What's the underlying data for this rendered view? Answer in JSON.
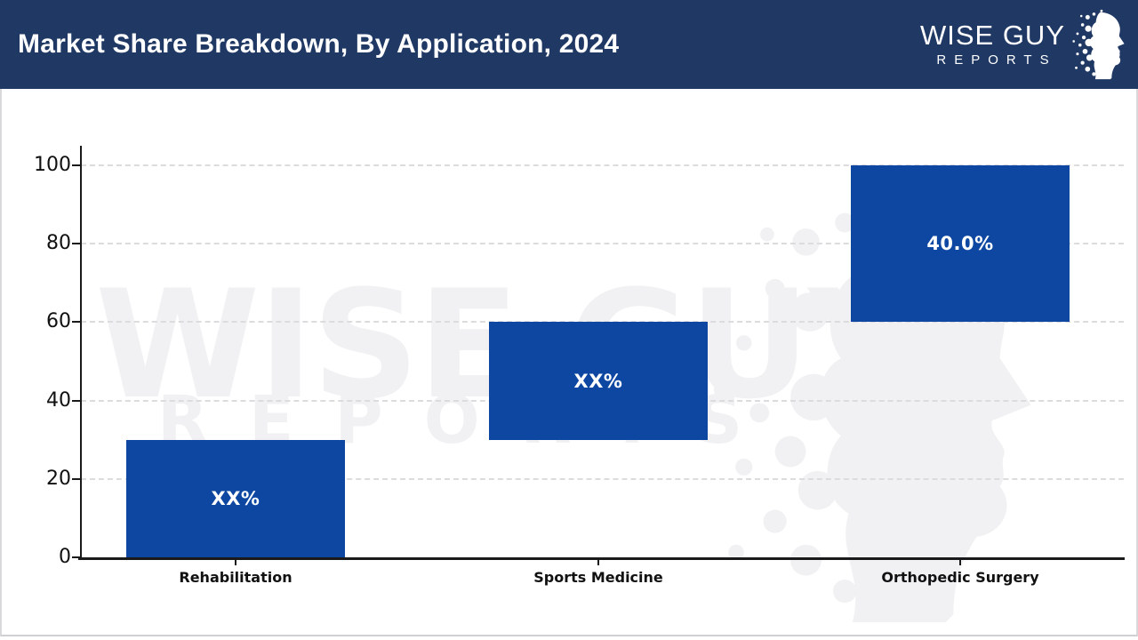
{
  "header": {
    "title": "Market Share Breakdown, By Application, 2024",
    "logo": {
      "line1": "WISE GUY",
      "line2": "REPORTS"
    }
  },
  "watermark": {
    "line1": "WISE GUY",
    "line2": "REPORTS"
  },
  "chart_data": {
    "type": "bar",
    "subtype": "waterfall",
    "title": "Market Share Breakdown, By Application, 2024",
    "categories": [
      "Rehabilitation",
      "Sports Medicine",
      "Orthopedic Surgery"
    ],
    "series": [
      {
        "name": "Market Share (%)",
        "values": [
          30,
          30,
          40
        ],
        "bases": [
          0,
          30,
          60
        ]
      }
    ],
    "bar_labels": [
      "XX%",
      "XX%",
      "40.0%"
    ],
    "yticks": [
      0,
      20,
      40,
      60,
      80,
      100
    ],
    "ylim": [
      0,
      105
    ],
    "xlabel": "",
    "ylabel": "",
    "grid": "horizontal-dashed",
    "legend": "none",
    "bar_color": "#0d47a1",
    "header_color": "#1f3864",
    "grid_color": "#dcdcdf",
    "label_color": "#ffffff"
  }
}
